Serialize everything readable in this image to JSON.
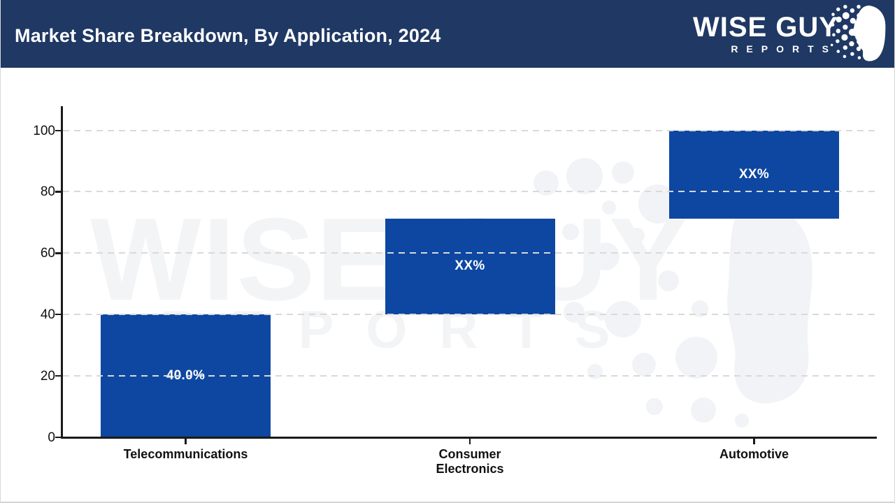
{
  "header": {
    "title": "Market Share Breakdown, By Application, 2024",
    "logo": {
      "wordmark": "WISE GUY",
      "subtext": "REPORTS"
    }
  },
  "watermark": {
    "line1": "WISE GUY",
    "line2": "REPORTS"
  },
  "chart_data": {
    "type": "bar",
    "subtype": "waterfall",
    "title": "Market Share Breakdown, By Application, 2024",
    "categories": [
      "Telecommunications",
      "Consumer Electronics",
      "Automotive"
    ],
    "bars": [
      {
        "category": "Telecommunications",
        "start": 0,
        "end": 40,
        "value": 40.0,
        "label": "40.0%"
      },
      {
        "category": "Consumer Electronics",
        "start": 40,
        "end": 71.2,
        "value": 31.2,
        "label": "XX%"
      },
      {
        "category": "Automotive",
        "start": 71.2,
        "end": 100,
        "value": 28.8,
        "label": "XX%"
      }
    ],
    "yticks": [
      0,
      20,
      40,
      60,
      80,
      100
    ],
    "ylim": [
      0,
      105
    ],
    "xlabel": "",
    "ylabel": "",
    "legend": "none",
    "grid": "y-dashed",
    "colors": {
      "bar": "#0d47a1",
      "bar_label": "#ffffff",
      "grid": "#d9d9d9",
      "axis": "#1a1a1a",
      "header_bg": "#1f3864",
      "watermark": "#f2f3f6"
    }
  }
}
